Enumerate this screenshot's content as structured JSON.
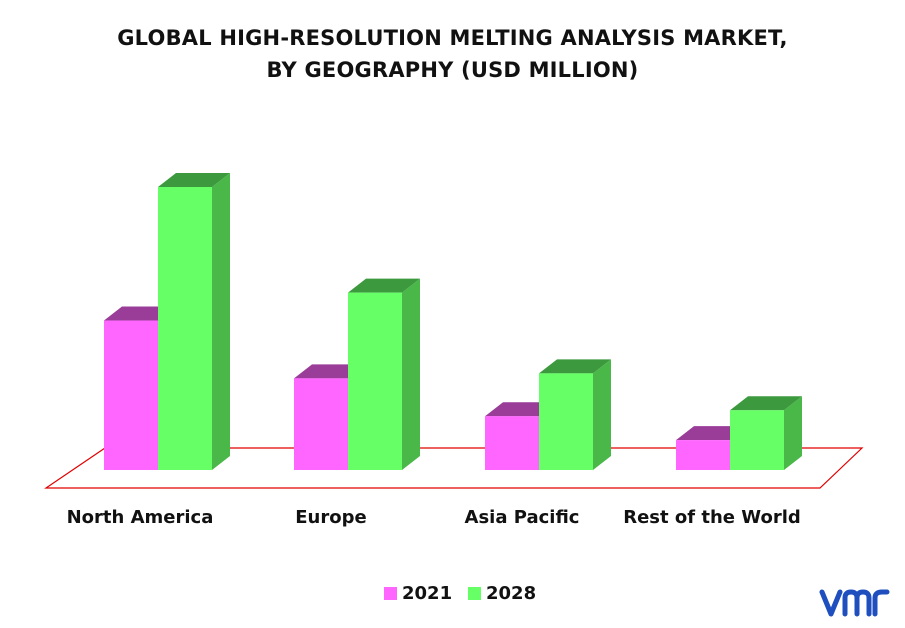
{
  "chart_data": {
    "type": "bar",
    "title_line1": "GLOBAL HIGH-RESOLUTION MELTING ANALYSIS MARKET,",
    "title_line2": "BY GEOGRAPHY (USD MILLION)",
    "categories": [
      "North America",
      "Europe",
      "Asia Pacific",
      "Rest of the World"
    ],
    "series": [
      {
        "name": "2021",
        "values": [
          150,
          92,
          54,
          30
        ],
        "color": "#ff66ff"
      },
      {
        "name": "2028",
        "values": [
          284,
          178,
          97,
          60
        ],
        "color": "#66ff66"
      }
    ],
    "ylim": [
      0,
      300
    ],
    "grid": false,
    "legend": "bottom-center",
    "floor_outline_color": "#e00000",
    "three_d": true
  },
  "brand": {
    "logo_icon": "vmr-logo-icon",
    "logo_color": "#1f4fbf"
  }
}
